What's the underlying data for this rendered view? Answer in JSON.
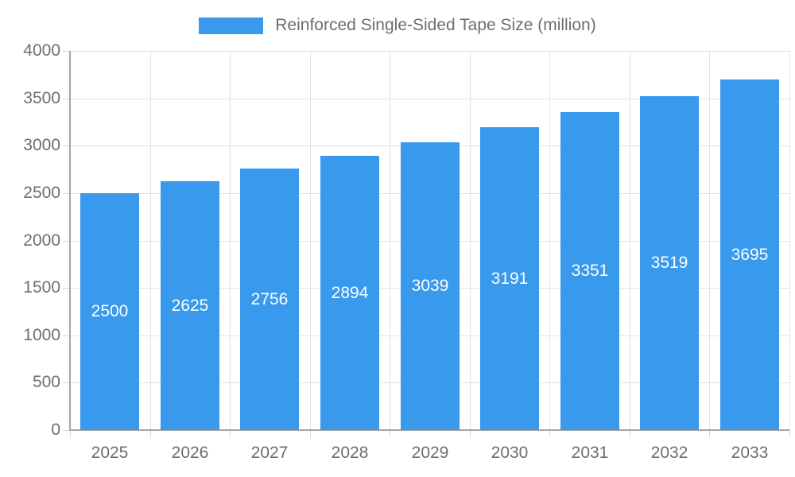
{
  "legend": {
    "label": "Reinforced Single-Sided Tape Size (million)"
  },
  "colors": {
    "bar": "#3999EC",
    "grid": "#e3e3e3",
    "axis": "#a6a6a6",
    "tick_label": "#6e6e6e",
    "bar_label": "#ffffff",
    "background": "#ffffff"
  },
  "chart_data": {
    "type": "bar",
    "title": "Reinforced Single-Sided Tape Size (million)",
    "categories": [
      "2025",
      "2026",
      "2027",
      "2028",
      "2029",
      "2030",
      "2031",
      "2032",
      "2033"
    ],
    "values": [
      2500,
      2625,
      2756,
      2894,
      3039,
      3191,
      3351,
      3519,
      3695
    ],
    "xlabel": "",
    "ylabel": "",
    "ylim": [
      0,
      4000
    ],
    "ytick_step": 500,
    "ytick_labels": [
      "0",
      "500",
      "1000",
      "1500",
      "2000",
      "2500",
      "3000",
      "3500",
      "4000"
    ],
    "grid": true,
    "legend_position": "top",
    "value_labels": "inside-center",
    "series": [
      {
        "name": "Reinforced Single-Sided Tape Size (million)",
        "values": [
          2500,
          2625,
          2756,
          2894,
          3039,
          3191,
          3351,
          3519,
          3695
        ]
      }
    ]
  }
}
